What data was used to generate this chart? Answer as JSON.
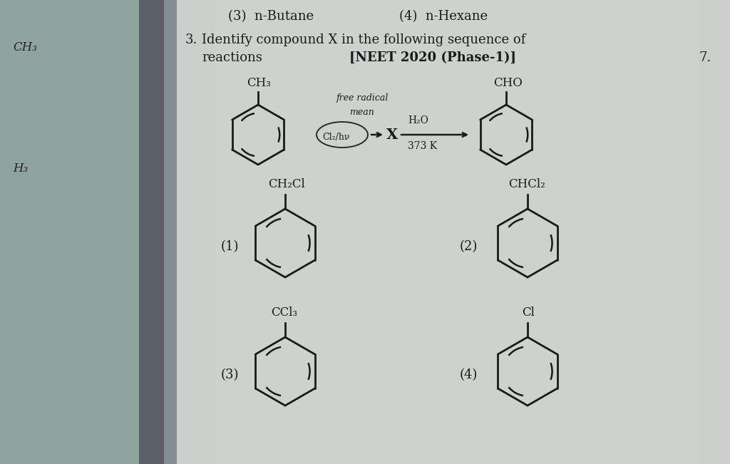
{
  "bg_left_color": "#8fa09a",
  "bg_right_color": "#c8cfc8",
  "page_color": "#d4d8d0",
  "spine_color": "#606870",
  "text_color": "#1a1a1a",
  "title_line": [
    "(3)  n-Butane",
    "(4)  n-Hexane"
  ],
  "question_num": "3.",
  "question_line1": "Identify compound X in the following sequence of",
  "question_line2": "reactions",
  "neet_ref": "[NEET 2020 (Phase-1)]",
  "num_7": "7.",
  "left_ch3": "CH₃",
  "left_h3": "H₃",
  "toluene_ch3": "CH₃",
  "product_cho": "CHO",
  "reaction_cl2hv": "Cl₂/hν",
  "reaction_h2o": "H₂O",
  "reaction_373k": "373 K",
  "reaction_x": "X",
  "free_radical": "free radical",
  "mean_text": "mean",
  "opt1_label": "(1)",
  "opt1_group": "CH₂Cl",
  "opt2_label": "(2)",
  "opt2_group": "CHCl₂",
  "opt3_label": "(3)",
  "opt3_group": "CCl₃",
  "opt4_label": "(4)",
  "opt4_group": "Cl"
}
